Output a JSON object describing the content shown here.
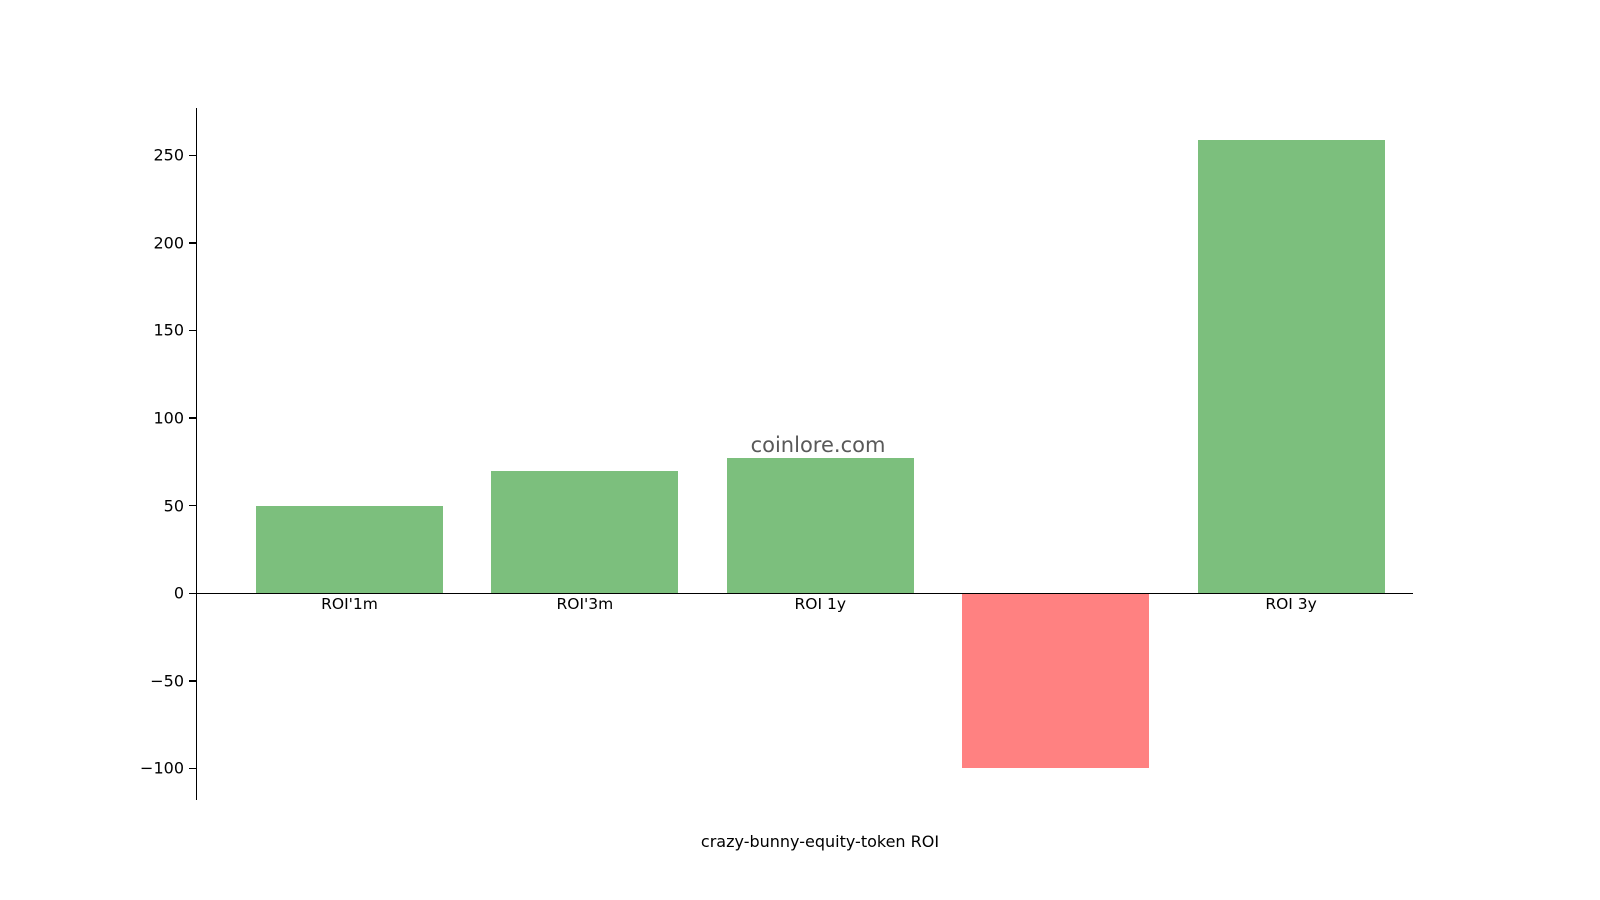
{
  "watermark": "coinlore.com",
  "chart_data": {
    "type": "bar",
    "title": "crazy-bunny-equity-token ROI",
    "xlabel": "",
    "ylabel": "",
    "grid": false,
    "legend": "none",
    "categories": [
      "ROI'1m",
      "ROI'3m",
      "ROI 1y",
      "",
      "ROI 3y"
    ],
    "values": [
      50,
      70,
      77,
      -100,
      259
    ],
    "bar_colors": [
      "#7cbf7d",
      "#7cbf7d",
      "#7cbf7d",
      "#ff8181",
      "#7cbf7d"
    ],
    "positive_color": "#7cbf7d",
    "negative_color": "#ff8181",
    "ylim": [
      -118,
      277
    ],
    "yticks": [
      {
        "value": 250,
        "label": "250"
      },
      {
        "value": 200,
        "label": "200"
      },
      {
        "value": 150,
        "label": "150"
      },
      {
        "value": 100,
        "label": "100"
      },
      {
        "value": 50,
        "label": "50"
      },
      {
        "value": 0,
        "label": "0"
      },
      {
        "value": -50,
        "label": "−50"
      },
      {
        "value": -100,
        "label": "−100"
      }
    ]
  }
}
